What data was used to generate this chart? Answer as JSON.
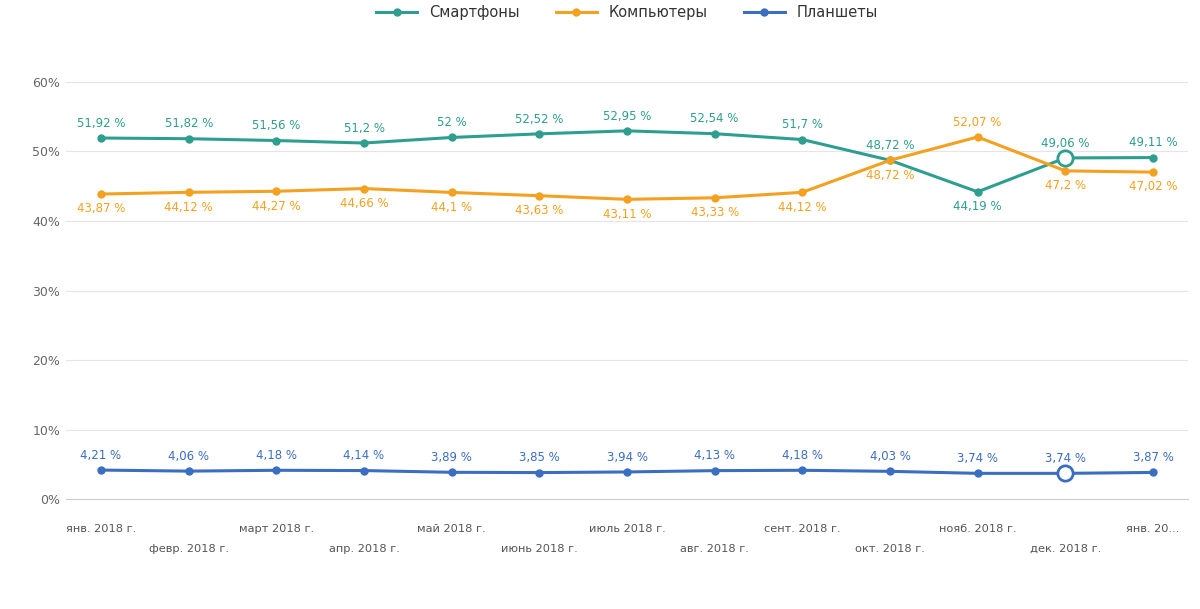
{
  "x_labels_top": [
    "янв. 2018 г.",
    "март 2018 г.",
    "май 2018 г.",
    "июль 2018 г.",
    "сент. 2018 г.",
    "нояб. 2018 г.",
    "янв. 20..."
  ],
  "x_labels_bottom": [
    "февр. 2018 г.",
    "апр. 2018 г.",
    "июнь 2018 г.",
    "авг. 2018 г.",
    "окт. 2018 г.",
    "дек. 2018 г."
  ],
  "x_positions_top": [
    0,
    2,
    4,
    6,
    8,
    10,
    12
  ],
  "x_positions_bottom": [
    1,
    3,
    5,
    7,
    9,
    11
  ],
  "smartphones": [
    51.92,
    51.82,
    51.56,
    51.2,
    52.0,
    52.52,
    52.95,
    52.54,
    51.7,
    48.72,
    44.19,
    49.06,
    49.11
  ],
  "computers": [
    43.87,
    44.12,
    44.27,
    44.66,
    44.1,
    43.63,
    43.11,
    43.33,
    44.12,
    48.72,
    52.07,
    47.2,
    47.02
  ],
  "tablets": [
    4.21,
    4.06,
    4.18,
    4.14,
    3.89,
    3.85,
    3.94,
    4.13,
    4.18,
    4.03,
    3.74,
    3.74,
    3.87
  ],
  "smartphones_labels": [
    "51,92 %",
    "51,82 %",
    "51,56 %",
    "51,2 %",
    "52 %",
    "52,52 %",
    "52,95 %",
    "52,54 %",
    "51,7 %",
    "48,72 %",
    "44,19 %",
    "49,06 %",
    "49,11 %"
  ],
  "computers_labels": [
    "43,87 %",
    "44,12 %",
    "44,27 %",
    "44,66 %",
    "44,1 %",
    "43,63 %",
    "43,11 %",
    "43,33 %",
    "44,12 %",
    "48,72 %",
    "52,07 %",
    "47,2 %",
    "47,02 %"
  ],
  "tablets_labels": [
    "4,21 %",
    "4,06 %",
    "4,18 %",
    "4,14 %",
    "3,89 %",
    "3,85 %",
    "3,94 %",
    "4,13 %",
    "4,18 %",
    "4,03 %",
    "3,74 %",
    "3,74 %",
    "3,87 %"
  ],
  "color_smartphones": "#2E9E8E",
  "color_computers": "#F4A020",
  "color_tablets": "#3A6EC0",
  "legend_labels": [
    "Смартфоны",
    "Компьютеры",
    "Планшеты"
  ],
  "ylim": [
    0,
    63
  ],
  "yticks": [
    0,
    10,
    20,
    30,
    40,
    50,
    60
  ],
  "background_color": "#ffffff",
  "grid_color": "#e5e5e5"
}
